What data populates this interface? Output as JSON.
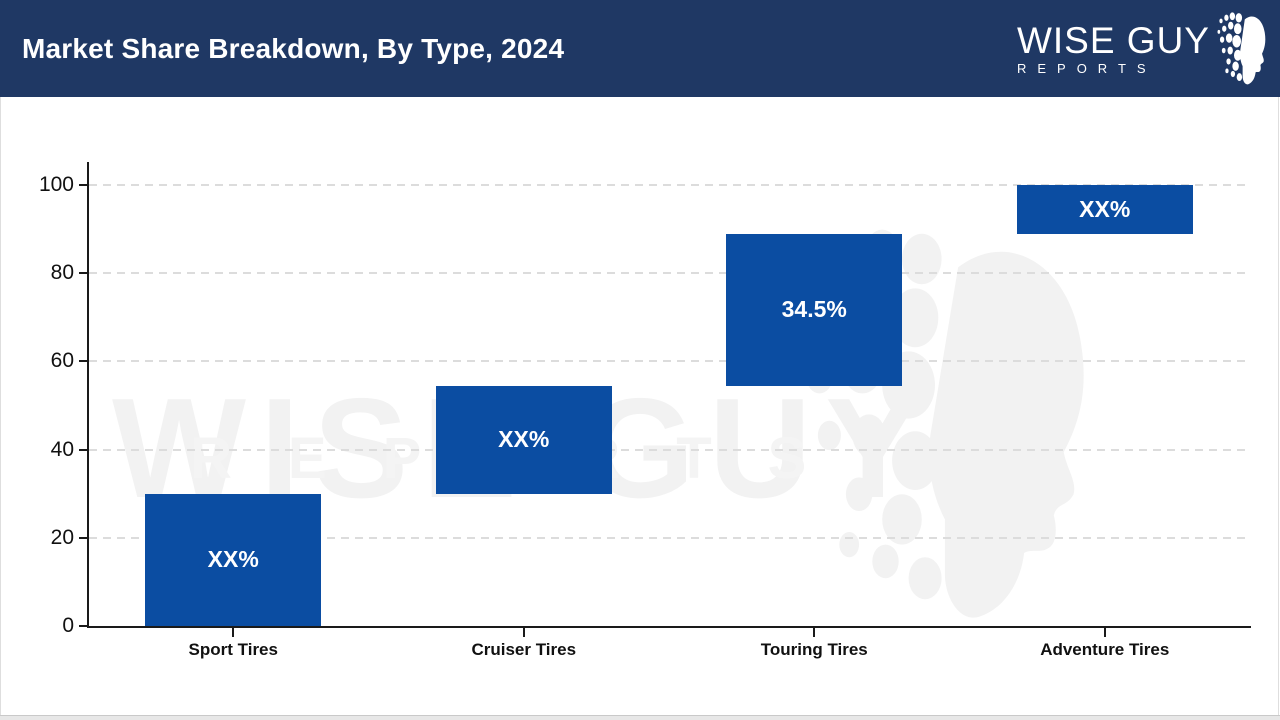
{
  "header": {
    "title": "Market Share Breakdown, By Type, 2024",
    "bg_color": "#1f3864",
    "logo": {
      "line1": "WISE GUY",
      "line2": "REPORTS"
    }
  },
  "watermark": {
    "line1": "WISE GUY",
    "line2": "REPORTS",
    "color": "#f2f2f2"
  },
  "chart_data": {
    "type": "bar",
    "subtype": "waterfall",
    "title": "Market Share Breakdown, By Type, 2024",
    "categories": [
      "Sport Tires",
      "Cruiser Tires",
      "Touring Tires",
      "Adventure Tires"
    ],
    "segments": [
      {
        "category": "Sport Tires",
        "start": 0,
        "end": 30,
        "label": "XX%"
      },
      {
        "category": "Cruiser Tires",
        "start": 30,
        "end": 54.5,
        "label": "XX%"
      },
      {
        "category": "Touring Tires",
        "start": 54.5,
        "end": 89,
        "label": "34.5%"
      },
      {
        "category": "Adventure Tires",
        "start": 89,
        "end": 100,
        "label": "XX%"
      }
    ],
    "y_ticks": [
      0,
      20,
      40,
      60,
      80,
      100
    ],
    "ylim": [
      0,
      105
    ],
    "xlabel": "",
    "ylabel": "",
    "grid": "horizontal-dashed",
    "grid_color": "#dcdcdc",
    "axis_color": "#1a1a1a",
    "bar_color": "#0b4da2",
    "bar_label_color": "#ffffff",
    "legend": "none"
  }
}
